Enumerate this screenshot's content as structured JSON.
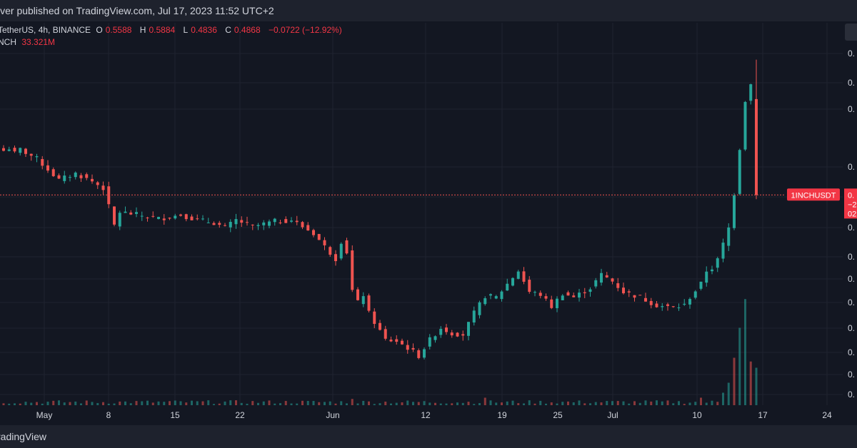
{
  "header": {
    "publish_text": "iver published on TradingView.com, Jul 17, 2023 11:52 UTC+2"
  },
  "footer": {
    "brand_text": "radingView"
  },
  "legend": {
    "symbol_text": "TetherUS, 4h, BINANCE",
    "o_label": "O",
    "o_value": "0.5588",
    "h_label": "H",
    "h_value": "0.5884",
    "l_label": "L",
    "l_value": "0.4836",
    "c_label": "C",
    "c_value": "0.4868",
    "change_text": "−0.0722 (−12.92%)",
    "volume_name": "NCH",
    "volume_value": "33.321M"
  },
  "price_tag": {
    "symbol": "1INCHUSDT",
    "right_lines": [
      "0.",
      "−2",
      "02"
    ]
  },
  "colors": {
    "background": "#131722",
    "up": "#26a69a",
    "down": "#ef5350",
    "grid": "#1f2330",
    "price_line": "#ef5350"
  },
  "chart_data": {
    "type": "candlestick",
    "x_tick_labels": [
      "May",
      "8",
      "15",
      "22",
      "Jun",
      "12",
      "19",
      "25",
      "Jul",
      "10",
      "17",
      "24"
    ],
    "y_tick_labels": [
      "0.",
      "0.",
      "0.",
      "0.",
      "0.",
      "0.",
      "0.",
      "0.",
      "0.",
      "0.",
      "0.",
      "0.",
      "0."
    ],
    "last_candle": {
      "open": 0.5588,
      "high": 0.5884,
      "low": 0.4836,
      "close": 0.4868
    },
    "last_change": -0.0722,
    "last_change_pct": -12.92,
    "last_volume": "33.321M",
    "path_points": [
      [
        0,
        0.52
      ],
      [
        1,
        0.522
      ],
      [
        2,
        0.518
      ],
      [
        3,
        0.521
      ],
      [
        6,
        0.514
      ],
      [
        8,
        0.506
      ],
      [
        10,
        0.498
      ],
      [
        13,
        0.503
      ],
      [
        16,
        0.497
      ],
      [
        18,
        0.492
      ],
      [
        19,
        0.478
      ],
      [
        20,
        0.464
      ],
      [
        21,
        0.474
      ],
      [
        24,
        0.472
      ],
      [
        28,
        0.469
      ],
      [
        32,
        0.472
      ],
      [
        35,
        0.468
      ],
      [
        38,
        0.466
      ],
      [
        40,
        0.462
      ],
      [
        42,
        0.468
      ],
      [
        45,
        0.463
      ],
      [
        49,
        0.467
      ],
      [
        52,
        0.468
      ],
      [
        54,
        0.463
      ],
      [
        56,
        0.458
      ],
      [
        58,
        0.448
      ],
      [
        60,
        0.439
      ],
      [
        61,
        0.452
      ],
      [
        62,
        0.444
      ],
      [
        63,
        0.415
      ],
      [
        64,
        0.406
      ],
      [
        65,
        0.412
      ],
      [
        66,
        0.398
      ],
      [
        69,
        0.378
      ],
      [
        71,
        0.377
      ],
      [
        73,
        0.372
      ],
      [
        75,
        0.366
      ],
      [
        77,
        0.378
      ],
      [
        79,
        0.387
      ],
      [
        81,
        0.383
      ],
      [
        83,
        0.382
      ],
      [
        85,
        0.398
      ],
      [
        87,
        0.411
      ],
      [
        89,
        0.41
      ],
      [
        91,
        0.42
      ],
      [
        93,
        0.43
      ],
      [
        95,
        0.414
      ],
      [
        97,
        0.412
      ],
      [
        99,
        0.403
      ],
      [
        101,
        0.413
      ],
      [
        103,
        0.41
      ],
      [
        106,
        0.417
      ],
      [
        108,
        0.427
      ],
      [
        110,
        0.422
      ],
      [
        112,
        0.414
      ],
      [
        115,
        0.41
      ],
      [
        118,
        0.404
      ],
      [
        121,
        0.402
      ],
      [
        123,
        0.404
      ],
      [
        124,
        0.41
      ],
      [
        126,
        0.42
      ],
      [
        127,
        0.43
      ],
      [
        128,
        0.432
      ],
      [
        129,
        0.438
      ],
      [
        130,
        0.45
      ],
      [
        131,
        0.462
      ],
      [
        132,
        0.488
      ],
      [
        133,
        0.522
      ],
      [
        134,
        0.558
      ],
      [
        135,
        0.57
      ],
      [
        136,
        0.4868
      ]
    ],
    "volume_spikes": [
      [
        63,
        0.05
      ],
      [
        87,
        0.06
      ],
      [
        126,
        0.06
      ],
      [
        130,
        0.1
      ],
      [
        131,
        0.18
      ],
      [
        132,
        0.38
      ],
      [
        133,
        0.62
      ],
      [
        134,
        0.85
      ],
      [
        135,
        0.35
      ],
      [
        136,
        0.3
      ]
    ]
  }
}
